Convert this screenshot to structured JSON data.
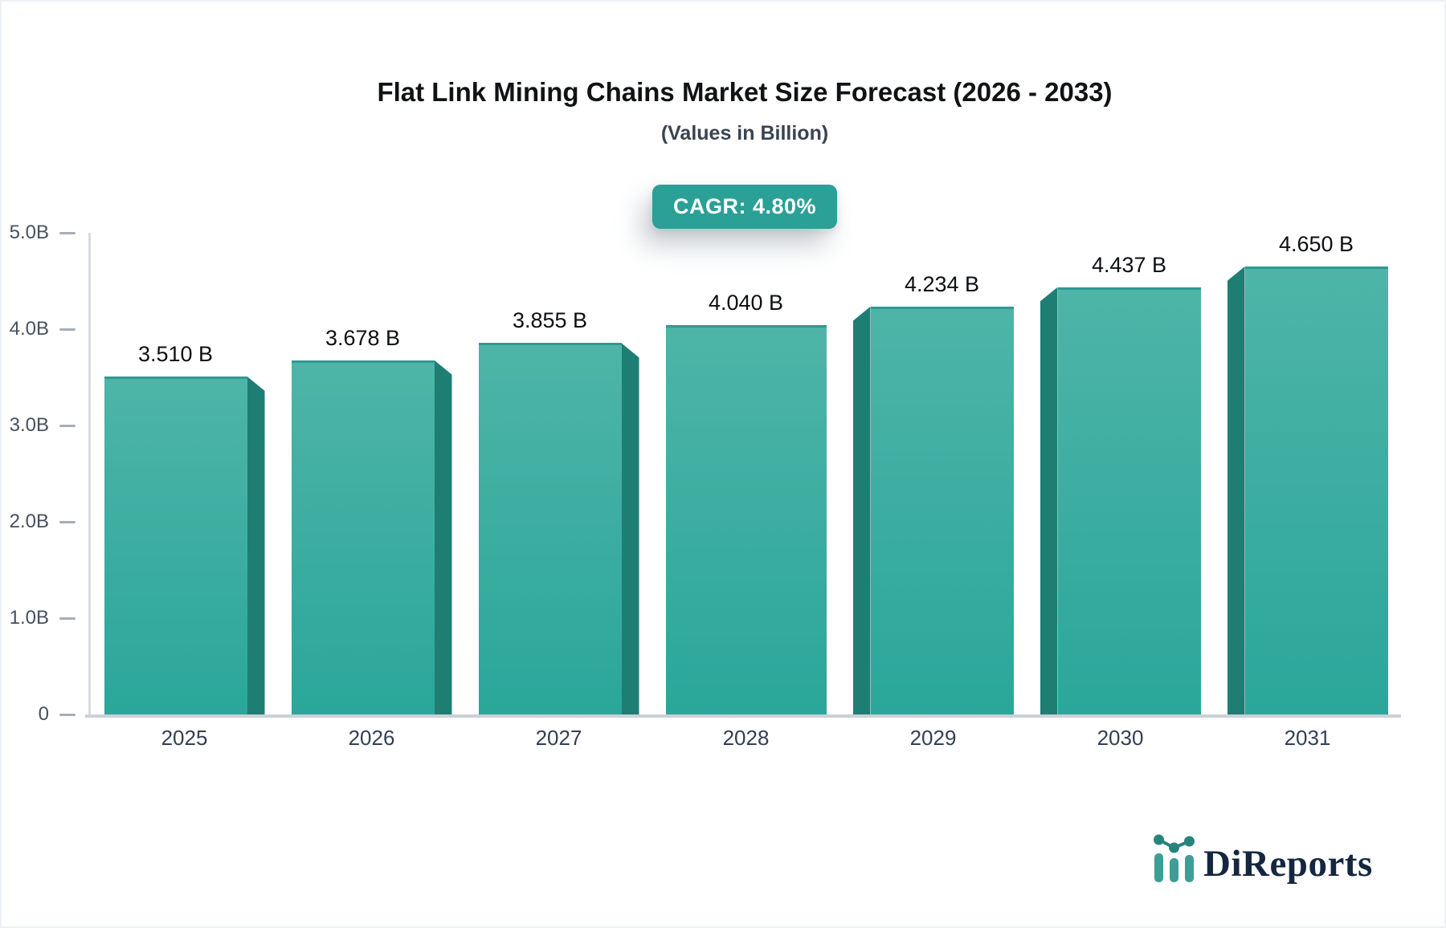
{
  "header": {
    "title": "Flat Link Mining Chains Market Size Forecast (2026 - 2033)",
    "subtitle": "(Values in Billion)"
  },
  "badge": {
    "label": "CAGR: 4.80%",
    "color": "#2aa096",
    "text_color": "#ffffff"
  },
  "chart_data": {
    "type": "bar",
    "title": "Flat Link Mining Chains Market Size Forecast (2026 - 2033)",
    "subtitle": "(Values in Billion)",
    "xlabel": "",
    "ylabel": "",
    "categories": [
      "2025",
      "2026",
      "2027",
      "2028",
      "2029",
      "2030",
      "2031"
    ],
    "values": [
      3.51,
      3.678,
      3.855,
      4.04,
      4.234,
      4.437,
      4.65
    ],
    "value_labels": [
      "3.510 B",
      "3.678 B",
      "3.855 B",
      "4.040 B",
      "4.234 B",
      "4.437 B",
      "4.650 B"
    ],
    "ylim": [
      0,
      5
    ],
    "yticks": [
      {
        "label": "5.0B",
        "value": 5
      },
      {
        "label": "4.0B",
        "value": 4
      },
      {
        "label": "3.0B",
        "value": 3
      },
      {
        "label": "2.0B",
        "value": 2
      },
      {
        "label": "1.0B",
        "value": 1
      },
      {
        "label": "0",
        "value": 0
      }
    ],
    "grid": false,
    "legend": false,
    "annotation": "CAGR: 4.80%",
    "bar_style": {
      "effect": "3d-bevel",
      "face_top": "#4eb4a8",
      "face_bottom": "#2aa79a",
      "top_edge": "#2e9a90",
      "side_face": "#1f7e74",
      "bevel_side_by_index": [
        "right",
        "right",
        "right",
        "none",
        "left",
        "left",
        "left"
      ]
    }
  },
  "logo": {
    "text": "DiReports",
    "icon": "mini-bar-line-chart-icon",
    "text_color": "#152740",
    "icon_bar_color": "#3d9e95",
    "icon_dot_color": "#27847c"
  }
}
